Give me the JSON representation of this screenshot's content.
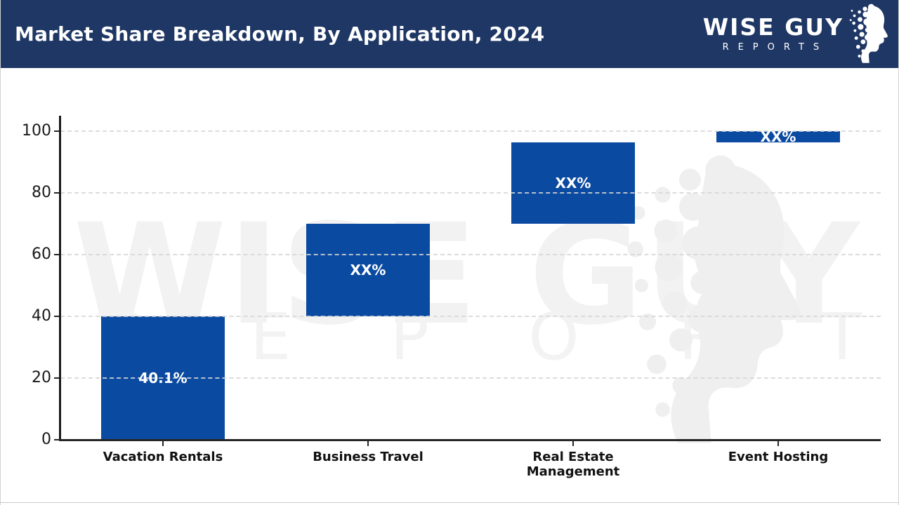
{
  "header": {
    "title": "Market Share Breakdown, By Application, 2024",
    "bg_color": "#1f3765",
    "logo": {
      "line1": "WISE GUY",
      "line2": "REPORTS",
      "head_icon": "wiseguy-head-icon"
    }
  },
  "chart_data": {
    "type": "waterfall",
    "title": "Market Share Breakdown, By Application, 2024",
    "categories": [
      "Vacation Rentals",
      "Business Travel",
      "Real Estate Management",
      "Event Hosting"
    ],
    "segments": [
      {
        "category": "Vacation Rentals",
        "start": 0,
        "end": 40.1,
        "label": "40.1%"
      },
      {
        "category": "Business Travel",
        "start": 40.1,
        "end": 70.0,
        "label": "XX%"
      },
      {
        "category": "Real Estate Management",
        "start": 70.0,
        "end": 96.4,
        "label": "XX%"
      },
      {
        "category": "Event Hosting",
        "start": 96.4,
        "end": 100.0,
        "label": "XX%"
      }
    ],
    "yticks": [
      0,
      20,
      40,
      60,
      80,
      100
    ],
    "ylim": [
      0,
      105
    ],
    "xlabel": "",
    "ylabel": "",
    "grid": true,
    "legend": "none",
    "bar_color": "#0b4aa1",
    "bar_label_color": "#ffffff",
    "watermark": {
      "line1": "WISE GUY",
      "line2": "R E P O R T S"
    }
  }
}
